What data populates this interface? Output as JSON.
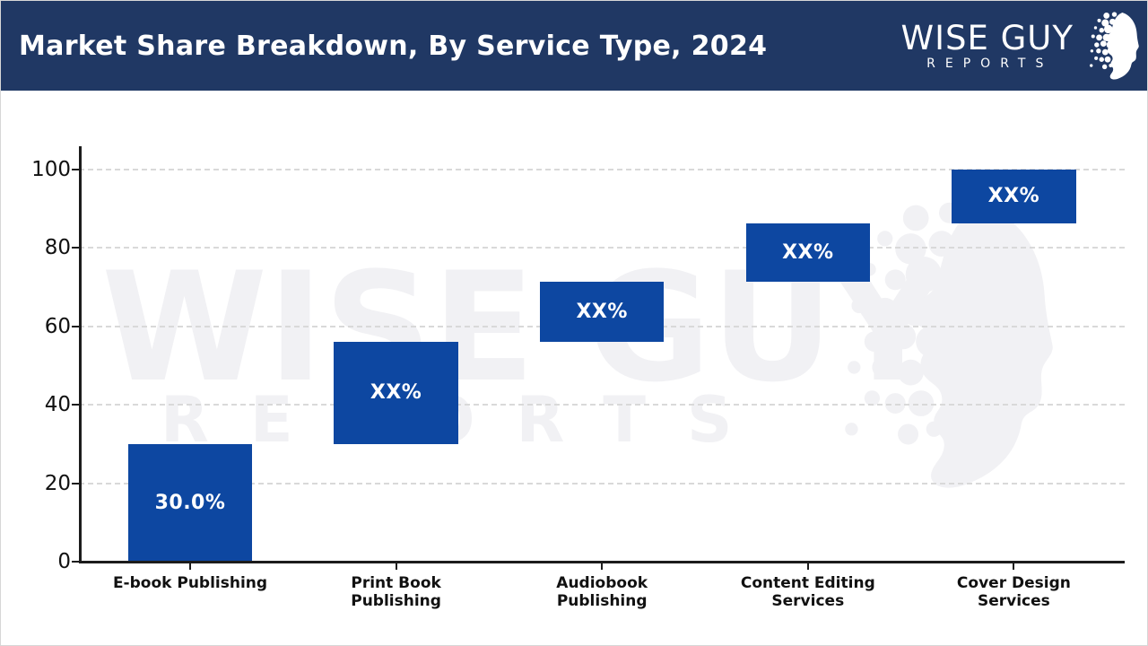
{
  "header": {
    "title": "Market Share Breakdown, By Service Type, 2024",
    "logo": {
      "word": "WISE GUY",
      "sub": "REPORTS"
    },
    "bg_color": "#203864"
  },
  "watermark": {
    "line1": "WISE GUY",
    "line2": "REPORTS"
  },
  "chart_data": {
    "type": "bar",
    "subtype": "floating-waterfall",
    "title": "Market Share Breakdown, By Service Type, 2024",
    "xlabel": "",
    "ylabel": "",
    "categories": [
      "E-book Publishing",
      "Print Book Publishing",
      "Audiobook Publishing",
      "Content Editing Services",
      "Cover Design Services"
    ],
    "category_lines": [
      [
        "E-book Publishing"
      ],
      [
        "Print Book",
        "Publishing"
      ],
      [
        "Audiobook",
        "Publishing"
      ],
      [
        "Content Editing",
        "Services"
      ],
      [
        "Cover Design",
        "Services"
      ]
    ],
    "segments": [
      [
        0,
        30.0
      ],
      [
        30.0,
        56.1
      ],
      [
        56.1,
        71.3
      ],
      [
        71.3,
        86.3
      ],
      [
        86.3,
        100.0
      ]
    ],
    "values": [
      30.0,
      26.1,
      15.2,
      15.0,
      13.7
    ],
    "bar_labels": [
      "30.0%",
      "XX%",
      "XX%",
      "XX%",
      "XX%"
    ],
    "yticks": [
      0,
      20,
      40,
      60,
      80,
      100
    ],
    "ylim": [
      0,
      106
    ],
    "grid": "horizontal dashed",
    "legend": "none",
    "bar_color": "#0d47a1",
    "bar_label_color": "#ffffff",
    "axis_color": "#1c1c1c",
    "gridline_color": "#d9d9d9"
  }
}
